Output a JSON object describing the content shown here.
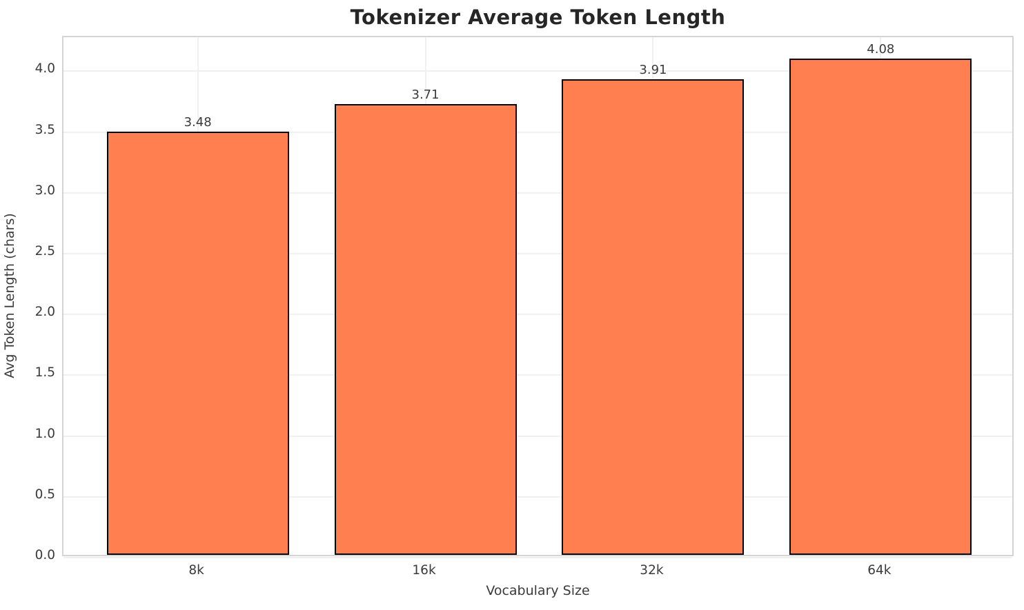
{
  "chart_data": {
    "type": "bar",
    "title": "Tokenizer Average Token Length",
    "xlabel": "Vocabulary Size",
    "ylabel": "Avg Token Length (chars)",
    "categories": [
      "8k",
      "16k",
      "32k",
      "64k"
    ],
    "values": [
      3.48,
      3.71,
      3.91,
      4.08
    ],
    "value_labels": [
      "3.48",
      "3.71",
      "3.91",
      "4.08"
    ],
    "yticks": [
      0.0,
      0.5,
      1.0,
      1.5,
      2.0,
      2.5,
      3.0,
      3.5,
      4.0
    ],
    "ytick_labels": [
      "0.0",
      "0.5",
      "1.0",
      "1.5",
      "2.0",
      "2.5",
      "3.0",
      "3.5",
      "4.0"
    ],
    "ylim": [
      0,
      4.28
    ],
    "xlim": [
      -0.59,
      3.59
    ],
    "bar_width": 0.8,
    "grid": true,
    "legend": null,
    "bar_color": "#FF7F50",
    "bar_edge_color": "#000000",
    "grid_color": "#f0f0f0",
    "spine_color": "#d4d4d4",
    "text_color": "#3a3a3a",
    "title_color": "#262626"
  }
}
